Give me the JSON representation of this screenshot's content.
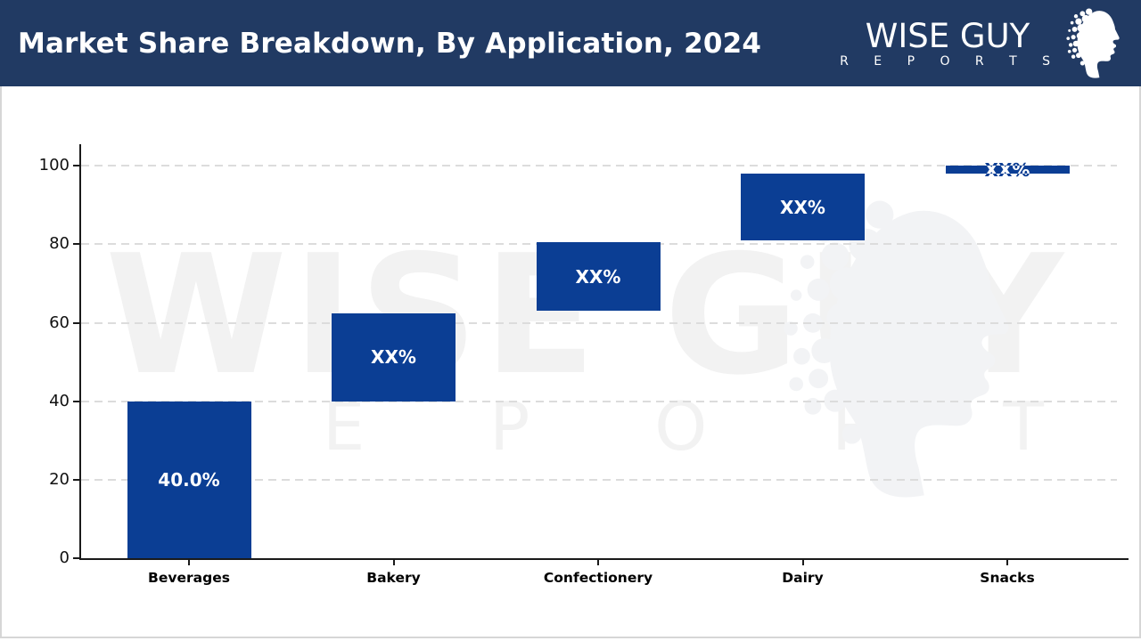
{
  "header": {
    "title": "Market Share Breakdown, By Application, 2024",
    "bg_color": "#213a63",
    "logo": {
      "line1": "WISE GUY",
      "line2": "R E P O R T S"
    }
  },
  "watermark": {
    "line1": "WISE GUY",
    "line2": "R E P O R T S"
  },
  "chart_data": {
    "type": "bar",
    "subtype": "waterfall",
    "title": "Market Share Breakdown, By Application, 2024",
    "xlabel": "",
    "ylabel": "",
    "categories": [
      "Beverages",
      "Bakery",
      "Confectionery",
      "Dairy",
      "Snacks"
    ],
    "segments": [
      {
        "category": "Beverages",
        "start": 0,
        "end": 40,
        "label": "40.0%"
      },
      {
        "category": "Bakery",
        "start": 40,
        "end": 62.5,
        "label": "XX%"
      },
      {
        "category": "Confectionery",
        "start": 63,
        "end": 80.5,
        "label": "XX%"
      },
      {
        "category": "Dairy",
        "start": 81,
        "end": 98,
        "label": "XX%"
      },
      {
        "category": "Snacks",
        "start": 98,
        "end": 100,
        "label": "XX%"
      }
    ],
    "yticks": [
      0,
      20,
      40,
      60,
      80,
      100
    ],
    "ylim": [
      0,
      105.5
    ],
    "grid": {
      "axis": "y",
      "style": "dashed",
      "color": "#dcdcdc"
    },
    "legend": "none",
    "bar_color": "#0b3e94",
    "bar_label_color": "#ffffff",
    "axis_color": "#1a1a1a"
  }
}
